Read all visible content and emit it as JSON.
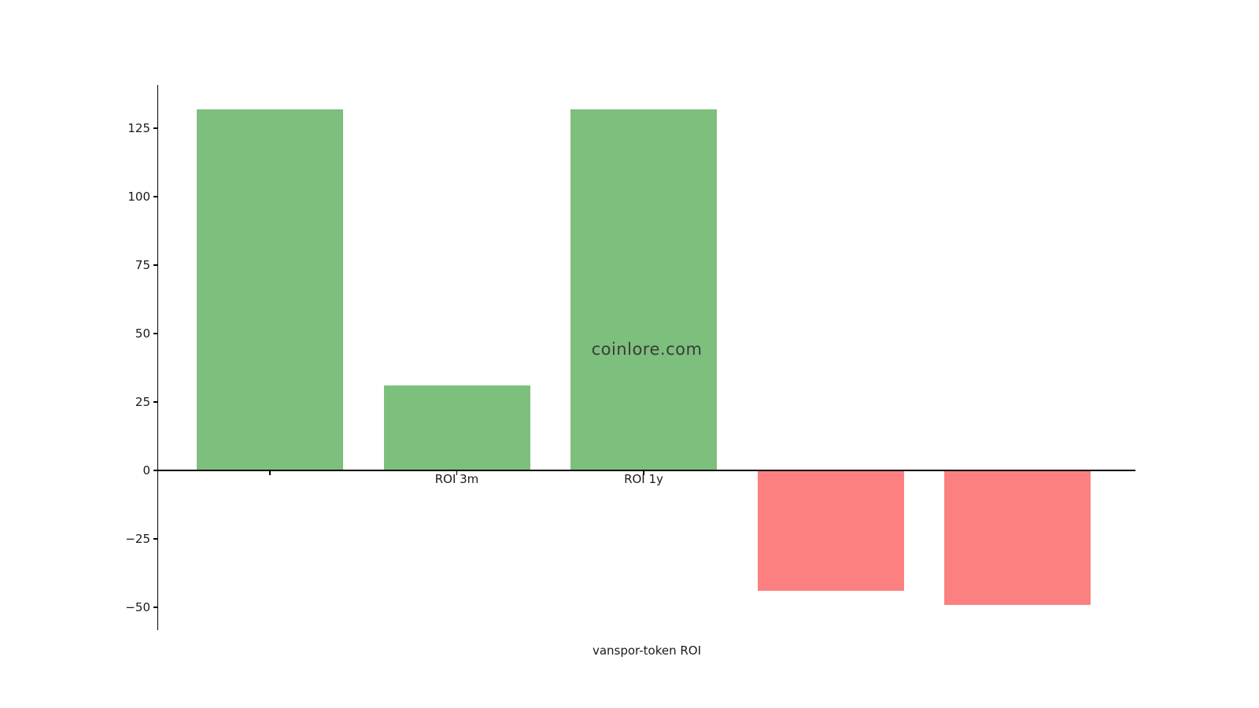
{
  "page": {
    "background": "#ffffff"
  },
  "watermark": {
    "text": "coinlore.com",
    "color": "#3b3b3b"
  },
  "footer_title": {
    "text": "vanspor-token ROI"
  },
  "chart_data": {
    "type": "bar",
    "title": "vanspor-token ROI",
    "xlabel": "",
    "ylabel": "",
    "categories": [
      "",
      "ROI 3m",
      "ROI 1y",
      "",
      ""
    ],
    "values": [
      132,
      31,
      132,
      -44,
      -49
    ],
    "bar_colors": [
      "#7dbf7d",
      "#7dbf7d",
      "#7dbf7d",
      "#fc8080",
      "#fc8080"
    ],
    "positive_color": "#7dbf7d",
    "negative_color": "#fc8080",
    "yticks": [
      125,
      100,
      75,
      50,
      25,
      0,
      -25,
      -50
    ],
    "ytick_labels": [
      "125",
      "100",
      "75",
      "50",
      "25",
      "0",
      "−25",
      "−50"
    ],
    "ylim": [
      -58,
      141
    ],
    "grid": false,
    "legend_position": "none",
    "axis_color": "#000000",
    "annotations": [
      "coinlore.com"
    ]
  }
}
